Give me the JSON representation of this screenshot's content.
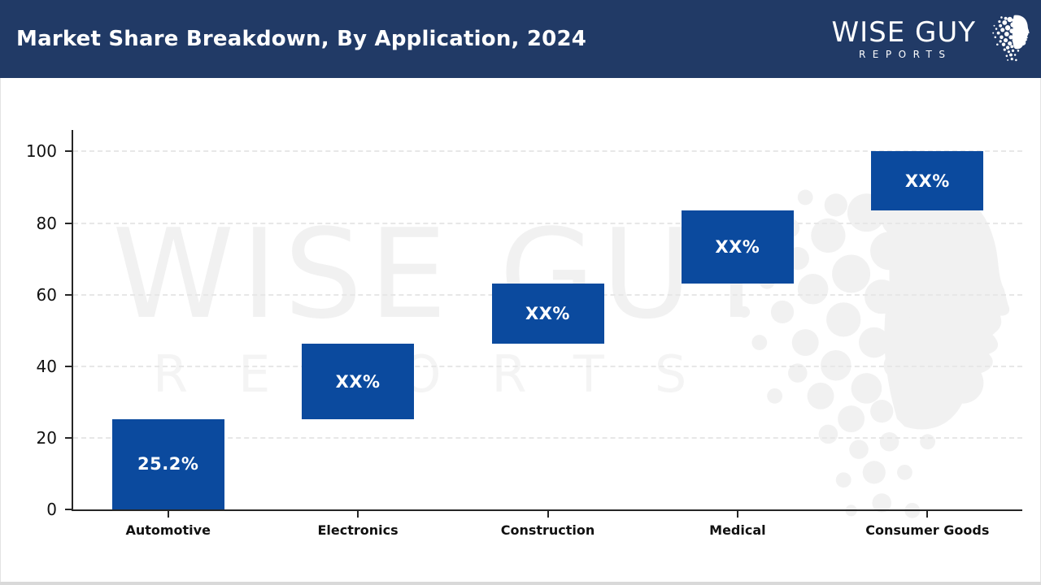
{
  "header": {
    "title": "Market Share Breakdown, By Application, 2024",
    "bg_color": "#213a66",
    "logo": {
      "line1": "WISE GUY",
      "line2": "REPORTS",
      "face_icon": "dotted-head-profile"
    }
  },
  "watermark": {
    "line1": "WISE GUY",
    "line2": "REPORTS"
  },
  "chart_data": {
    "type": "bar",
    "subtype": "waterfall",
    "title": "Market Share Breakdown, By Application, 2024",
    "categories": [
      "Automotive",
      "Electronics",
      "Construction",
      "Medical",
      "Consumer Goods"
    ],
    "segments": [
      {
        "category": "Automotive",
        "start": 0,
        "end": 25.2,
        "label": "25.2%"
      },
      {
        "category": "Electronics",
        "start": 25.2,
        "end": 46.3,
        "label": "XX%"
      },
      {
        "category": "Construction",
        "start": 46.3,
        "end": 63.0,
        "label": "XX%"
      },
      {
        "category": "Medical",
        "start": 63.0,
        "end": 83.5,
        "label": "XX%"
      },
      {
        "category": "Consumer Goods",
        "start": 83.5,
        "end": 100.0,
        "label": "XX%"
      }
    ],
    "yticks": [
      0,
      20,
      40,
      60,
      80,
      100
    ],
    "ylim": [
      0,
      100
    ],
    "xlabel": "",
    "ylabel": "",
    "grid": "horizontal-dashed",
    "legend": "none",
    "bar_color": "#0b4a9e",
    "bar_label_color": "#ffffff",
    "axis_color": "#262626",
    "grid_color": "#e7e7e7",
    "tick_label_color": "#111111"
  }
}
